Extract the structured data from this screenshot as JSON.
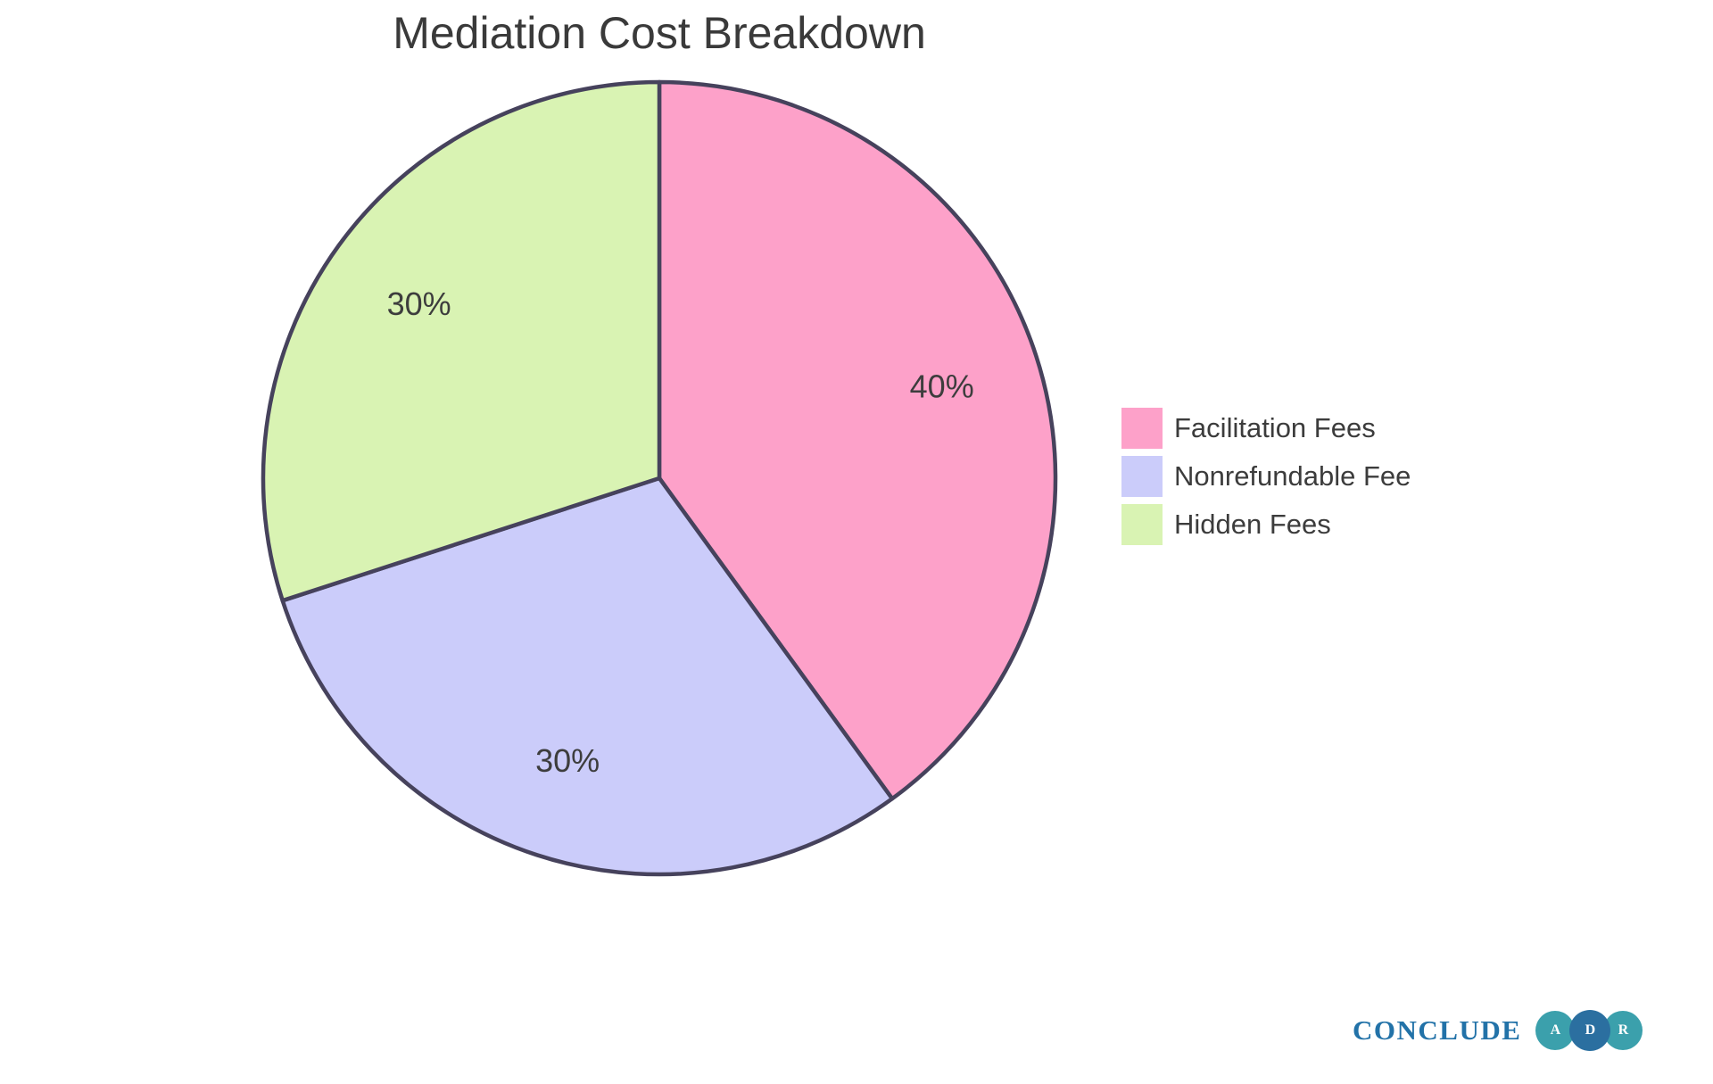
{
  "chart_data": {
    "type": "pie",
    "title": "Mediation Cost Breakdown",
    "categories": [
      "Facilitation Fees",
      "Nonrefundable Fee",
      "Hidden Fees"
    ],
    "values": [
      40,
      30,
      30
    ],
    "slices": [
      {
        "label": "Facilitation Fees",
        "value": 40,
        "display": "40%",
        "color": "#FDA1C9"
      },
      {
        "label": "Nonrefundable Fee",
        "value": 30,
        "display": "30%",
        "color": "#CBCCFA"
      },
      {
        "label": "Hidden Fees",
        "value": 30,
        "display": "30%",
        "color": "#D9F3B3"
      }
    ],
    "start_angle": "top",
    "direction": "clockwise",
    "stroke_color": "#46425C",
    "label_color": "#3D3D3D",
    "legend_position": "right",
    "background": "#FFFFFF"
  },
  "legend": {
    "items": [
      {
        "label": "Facilitation Fees",
        "color": "#FDA1C9"
      },
      {
        "label": "Nonrefundable Fee",
        "color": "#CBCCFA"
      },
      {
        "label": "Hidden Fees",
        "color": "#D9F3B3"
      }
    ]
  },
  "branding": {
    "wordmark": "CONCLUDE",
    "wordmark_color": "#2272A8",
    "badges": [
      {
        "letter": "A",
        "color": "#3BA0AC"
      },
      {
        "letter": "D",
        "color": "#2B6FA0"
      },
      {
        "letter": "R",
        "color": "#3BA0AC"
      }
    ]
  }
}
